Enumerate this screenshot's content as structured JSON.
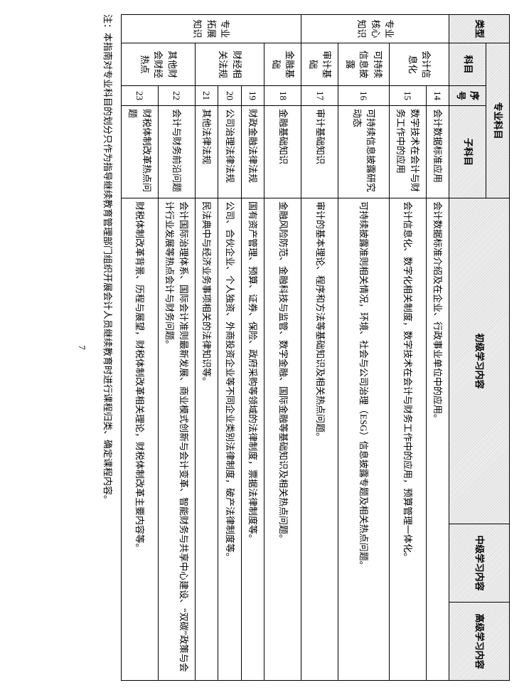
{
  "headers": {
    "type": "类型",
    "subject": "科目",
    "subject_title": "专业科目",
    "seq": "序号",
    "item": "子科目",
    "level1": "初级学习内容",
    "level2": "中级学习内容",
    "level3": "高级学习内容"
  },
  "type_groups": [
    {
      "label": "专业核心知识",
      "rows": 4
    },
    {
      "label": "专业拓展知识",
      "rows": 6
    }
  ],
  "subject_groups": [
    {
      "label": "会计信息化",
      "rows": 2
    },
    {
      "label": "可持续信息披露",
      "rows": 1
    },
    {
      "label": "审计基础",
      "rows": 1
    },
    {
      "label": "金融基础",
      "rows": 1
    },
    {
      "label": "财经相关法规",
      "rows": 3
    },
    {
      "label": "其他财会财经热点",
      "rows": 2
    }
  ],
  "rows": [
    {
      "seq": "14",
      "item": "会计数据标准应用",
      "content": "会计数据标准介绍及在企业、行政事业单位中的应用。"
    },
    {
      "seq": "15",
      "item": "数字技术在会计与财务工作中的应用",
      "content": "会计信息化、数字化相关制度，数字技术在会计与财务工作中的应用，预算管理一体化。"
    },
    {
      "seq": "16",
      "item": "可持续信息披露研究动态",
      "content": "可持续披露准则相关情况，环境、社会与公司治理（ESG）信息披露专题及相关热点问题。"
    },
    {
      "seq": "17",
      "item": "审计基础知识",
      "content": "审计的基本理论、程序和方法等基础知识及相关热点问题。"
    },
    {
      "seq": "18",
      "item": "金融基础知识",
      "content": "金融风险防范、金融科技与监管、数字金融、国际金融等基础知识及相关热点问题。"
    },
    {
      "seq": "19",
      "item": "财政金融法律法规",
      "content": "国有资产管理、预算、证券、保险、政府采购等领域的法律制度，票据法律制度等。"
    },
    {
      "seq": "20",
      "item": "公司治理法律法规",
      "content": "公司、合伙企业、个人独资、外商投资企业等不同企业类别法律制度，破产法律制度等。"
    },
    {
      "seq": "21",
      "item": "其他法律法规",
      "content": "民法典中与经济业务事项相关的法律知识等。"
    },
    {
      "seq": "22",
      "item": "会计与财务前沿问题",
      "content": "会计国际治理体系、国际会计准则最新发展、商业模式创新与会计变革、智能财务与共享中心建设、“双碳”政策与会计行业发展等热点会计与财务问题。"
    },
    {
      "seq": "23",
      "item": "财税体制改革热点问题",
      "content": "财税体制改革背景、历程与展望，财税体制改革相关理论，财税体制改革主要内容等。"
    }
  ],
  "footnote": "注：本指南对专业科目的划分只作为指导继续教育管理部门组织开展会计人员继续教育时进行课程归类、确定课程内容。",
  "pagenum": "7"
}
